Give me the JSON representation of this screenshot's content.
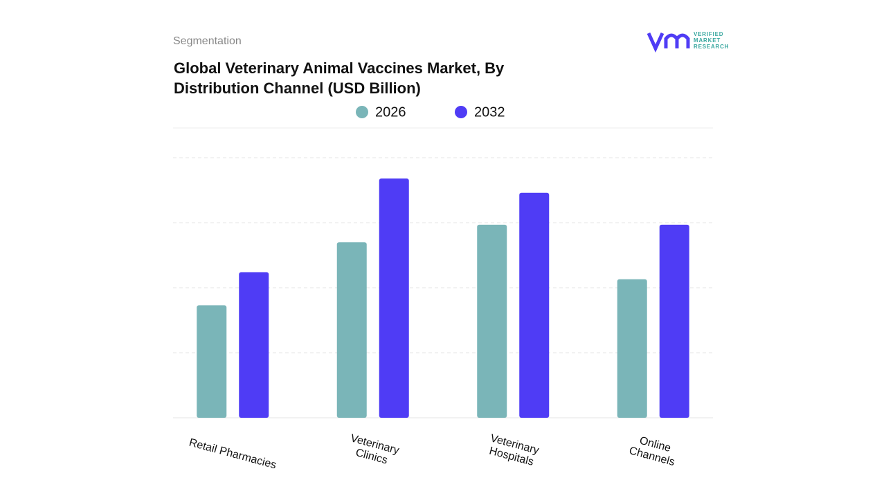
{
  "chart_data": {
    "type": "bar",
    "subtitle": "Segmentation",
    "title": "Global Veterinary Animal Vaccines Market, By Distribution Channel (USD Billion)",
    "logo": "VERIFIED MARKET RESEARCH",
    "categories": [
      "Retail Pharmacies",
      "Veterinary Clinics",
      "Veterinary Hospitals",
      "Online Channels"
    ],
    "series": [
      {
        "name": "2026",
        "color": "#7ab5b8",
        "values": [
          1.73,
          2.7,
          2.97,
          2.13
        ]
      },
      {
        "name": "2032",
        "color": "#4f3cf5",
        "values": [
          2.24,
          3.68,
          3.46,
          2.97
        ]
      }
    ],
    "ylim": [
      0,
      4
    ],
    "yticks": [
      1,
      2,
      3,
      4
    ],
    "grid": true
  }
}
